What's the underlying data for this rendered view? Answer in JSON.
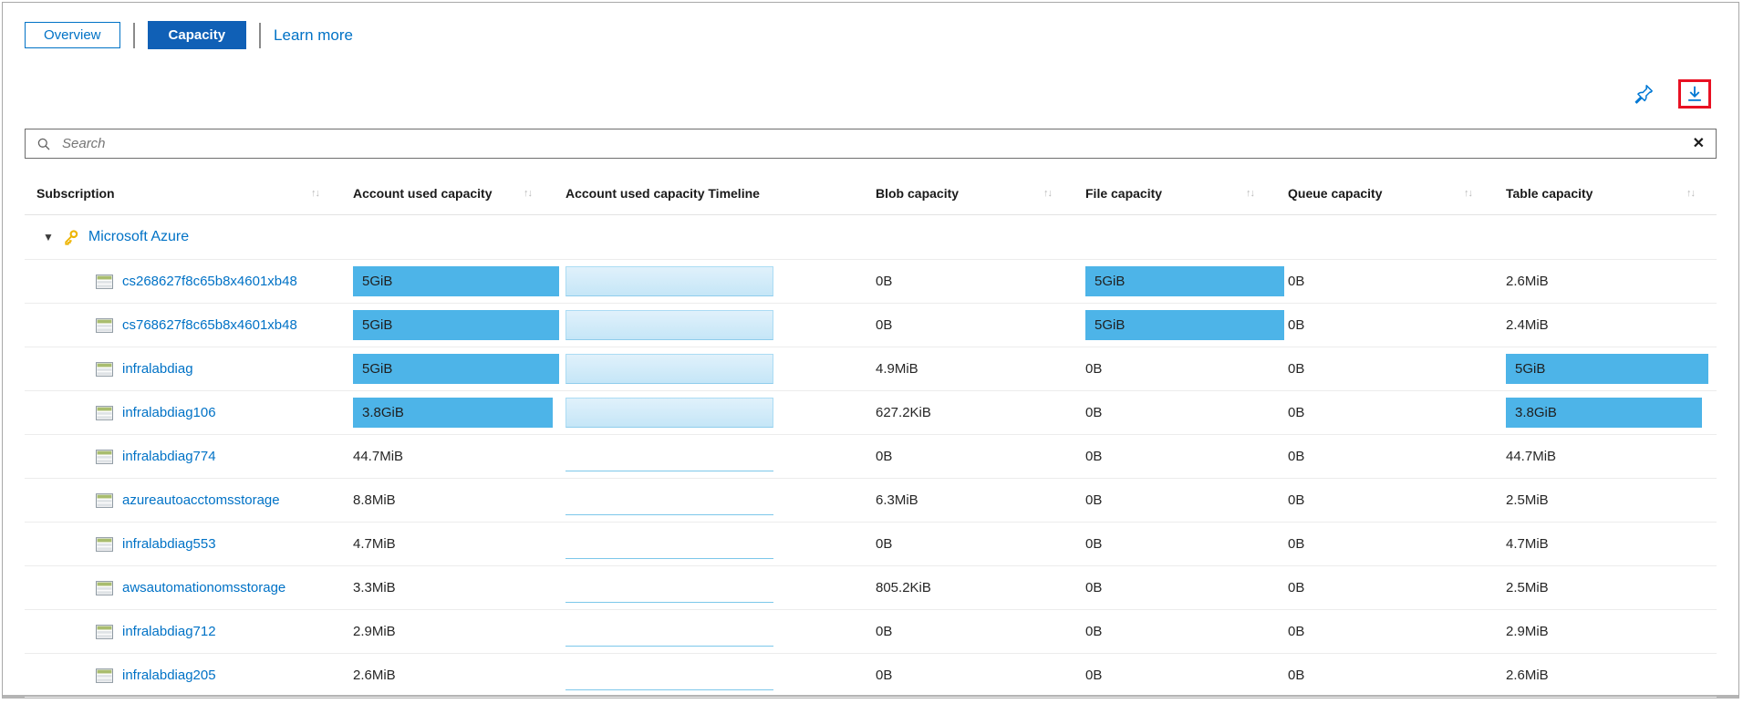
{
  "tabs": {
    "overview_label": "Overview",
    "capacity_label": "Capacity",
    "learn_more_label": "Learn more"
  },
  "search": {
    "placeholder": "Search"
  },
  "icons": {
    "sort": "↑↓",
    "clear": "✕",
    "collapse": "▼"
  },
  "colors": {
    "link_blue": "#0072c6",
    "primary_button_blue": "#1060b6",
    "bar_blue": "#4db4e8",
    "timeline_light_blue": "#c5e6f7",
    "download_highlight_red": "#e81123"
  },
  "table": {
    "columns": [
      {
        "label": "Subscription"
      },
      {
        "label": "Account used capacity"
      },
      {
        "label": "Account used capacity Timeline"
      },
      {
        "label": "Blob capacity"
      },
      {
        "label": "File capacity"
      },
      {
        "label": "Queue capacity"
      },
      {
        "label": "Table capacity"
      }
    ],
    "group_label": "Microsoft Azure",
    "rows": [
      {
        "name": "cs268627f8c65b8x4601xb48",
        "account": {
          "text": "5GiB",
          "pct": 100
        },
        "timeline": "bar",
        "blob": "0B",
        "file": {
          "text": "5GiB",
          "pct": 100
        },
        "queue": "0B",
        "table": {
          "text": "2.6MiB",
          "pct": 0
        }
      },
      {
        "name": "cs768627f8c65b8x4601xb48",
        "account": {
          "text": "5GiB",
          "pct": 100
        },
        "timeline": "bar",
        "blob": "0B",
        "file": {
          "text": "5GiB",
          "pct": 100
        },
        "queue": "0B",
        "table": {
          "text": "2.4MiB",
          "pct": 0
        }
      },
      {
        "name": "infralabdiag",
        "account": {
          "text": "5GiB",
          "pct": 100
        },
        "timeline": "bar",
        "blob": "4.9MiB",
        "file": {
          "text": "0B",
          "pct": 0
        },
        "queue": "0B",
        "table": {
          "text": "5GiB",
          "pct": 100
        }
      },
      {
        "name": "infralabdiag106",
        "account": {
          "text": "3.8GiB",
          "pct": 97
        },
        "timeline": "bar",
        "blob": "627.2KiB",
        "file": {
          "text": "0B",
          "pct": 0
        },
        "queue": "0B",
        "table": {
          "text": "3.8GiB",
          "pct": 97
        }
      },
      {
        "name": "infralabdiag774",
        "account": {
          "text": "44.7MiB",
          "pct": 0
        },
        "timeline": "line",
        "blob": "0B",
        "file": {
          "text": "0B",
          "pct": 0
        },
        "queue": "0B",
        "table": {
          "text": "44.7MiB",
          "pct": 0
        }
      },
      {
        "name": "azureautoacctomsstorage",
        "account": {
          "text": "8.8MiB",
          "pct": 0
        },
        "timeline": "line",
        "blob": "6.3MiB",
        "file": {
          "text": "0B",
          "pct": 0
        },
        "queue": "0B",
        "table": {
          "text": "2.5MiB",
          "pct": 0
        }
      },
      {
        "name": "infralabdiag553",
        "account": {
          "text": "4.7MiB",
          "pct": 0
        },
        "timeline": "line",
        "blob": "0B",
        "file": {
          "text": "0B",
          "pct": 0
        },
        "queue": "0B",
        "table": {
          "text": "4.7MiB",
          "pct": 0
        }
      },
      {
        "name": "awsautomationomsstorage",
        "account": {
          "text": "3.3MiB",
          "pct": 0
        },
        "timeline": "line",
        "blob": "805.2KiB",
        "file": {
          "text": "0B",
          "pct": 0
        },
        "queue": "0B",
        "table": {
          "text": "2.5MiB",
          "pct": 0
        }
      },
      {
        "name": "infralabdiag712",
        "account": {
          "text": "2.9MiB",
          "pct": 0
        },
        "timeline": "line",
        "blob": "0B",
        "file": {
          "text": "0B",
          "pct": 0
        },
        "queue": "0B",
        "table": {
          "text": "2.9MiB",
          "pct": 0
        }
      },
      {
        "name": "infralabdiag205",
        "account": {
          "text": "2.6MiB",
          "pct": 0
        },
        "timeline": "line",
        "blob": "0B",
        "file": {
          "text": "0B",
          "pct": 0
        },
        "queue": "0B",
        "table": {
          "text": "2.6MiB",
          "pct": 0
        }
      }
    ]
  }
}
